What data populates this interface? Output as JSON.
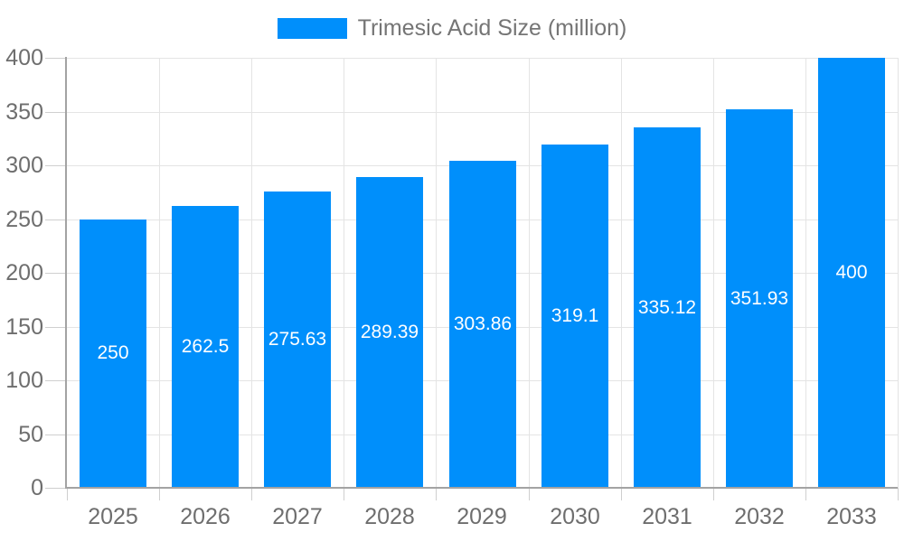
{
  "chart_data": {
    "type": "bar",
    "title": "Trimesic Acid Size (million)",
    "categories": [
      "2025",
      "2026",
      "2027",
      "2028",
      "2029",
      "2030",
      "2031",
      "2032",
      "2033"
    ],
    "series": [
      {
        "name": "Trimesic Acid Size (million)",
        "values": [
          250,
          262.5,
          275.63,
          289.39,
          303.86,
          319.1,
          335.12,
          351.93,
          400
        ]
      }
    ],
    "value_labels": [
      "250",
      "262.5",
      "275.63",
      "289.39",
      "303.86",
      "319.1",
      "335.12",
      "351.93",
      "400"
    ],
    "xlabel": "",
    "ylabel": "",
    "ylim": [
      0,
      400
    ],
    "yticks": [
      0,
      50,
      100,
      150,
      200,
      250,
      300,
      350,
      400
    ],
    "grid": true,
    "legend_position": "top-center",
    "colors": {
      "bar": "#008FFB",
      "bar_label": "#ffffff",
      "axis_text": "#6e6e6e",
      "grid_line": "#e4e4e4",
      "tick_line": "#cfcfcf",
      "axis_line": "#a3a3a3",
      "legend_text": "#757575",
      "background": "#ffffff"
    }
  }
}
